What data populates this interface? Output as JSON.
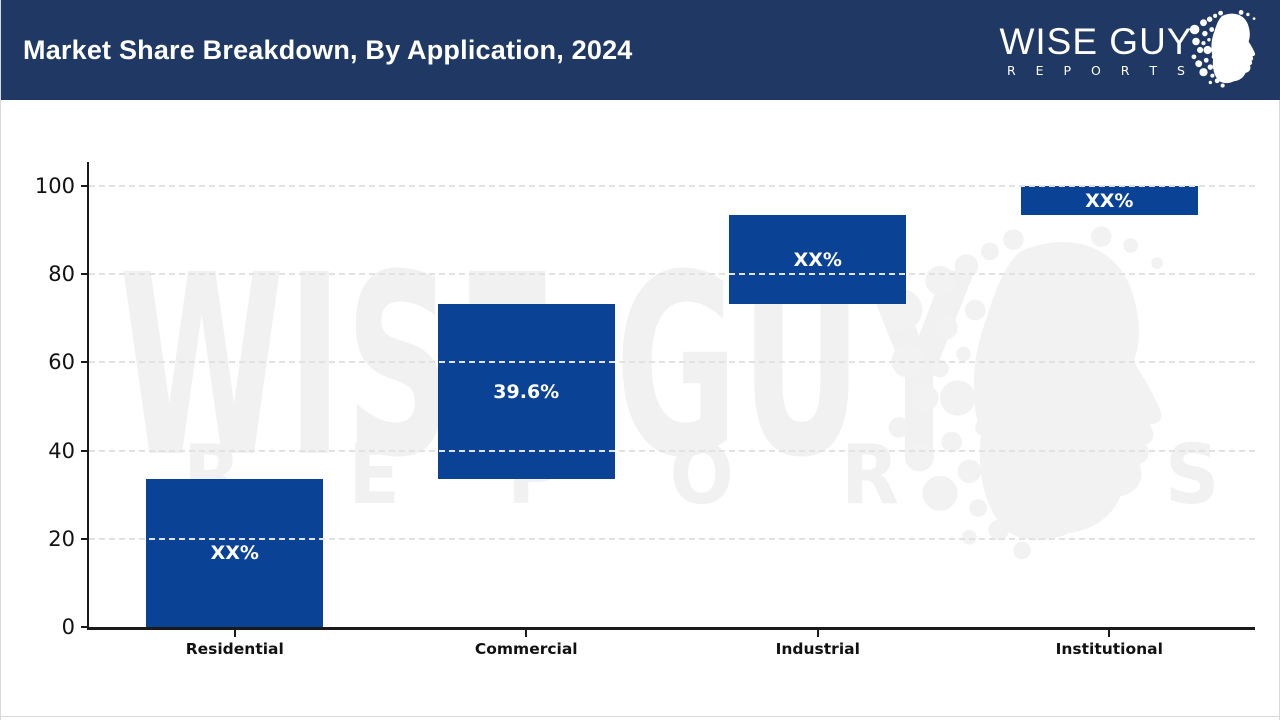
{
  "header": {
    "title": "Market Share Breakdown, By Application, 2024",
    "logo": {
      "line1": "WISE GUY",
      "line2": "R E P O R T S"
    }
  },
  "watermark": {
    "line1": "WISE GUY",
    "line2": "R E P O R T S"
  },
  "chart_data": {
    "type": "bar",
    "subtype": "waterfall",
    "title": "Market Share Breakdown, By Application, 2024",
    "categories": [
      "Residential",
      "Commercial",
      "Industrial",
      "Institutional"
    ],
    "series": [
      {
        "category": "Residential",
        "start": 0,
        "end": 33.6,
        "value_label": "XX%"
      },
      {
        "category": "Commercial",
        "start": 33.6,
        "end": 73.2,
        "value_label": "39.6%"
      },
      {
        "category": "Industrial",
        "start": 73.2,
        "end": 93.4,
        "value_label": "XX%"
      },
      {
        "category": "Institutional",
        "start": 93.4,
        "end": 100,
        "value_label": "XX%"
      }
    ],
    "yticks": [
      0,
      20,
      40,
      60,
      80,
      100
    ],
    "ylim": [
      0,
      105
    ],
    "xlabel": "",
    "ylabel": "",
    "grid": "horizontal-dashed",
    "legend": "none",
    "colors": {
      "bar": "#0a4296",
      "header_bg": "#1f3864",
      "grid_line": "#e2e2e2",
      "axis_line": "#1a1a1a",
      "bar_label": "#ffffff",
      "watermark": "#f1f1f1"
    }
  }
}
